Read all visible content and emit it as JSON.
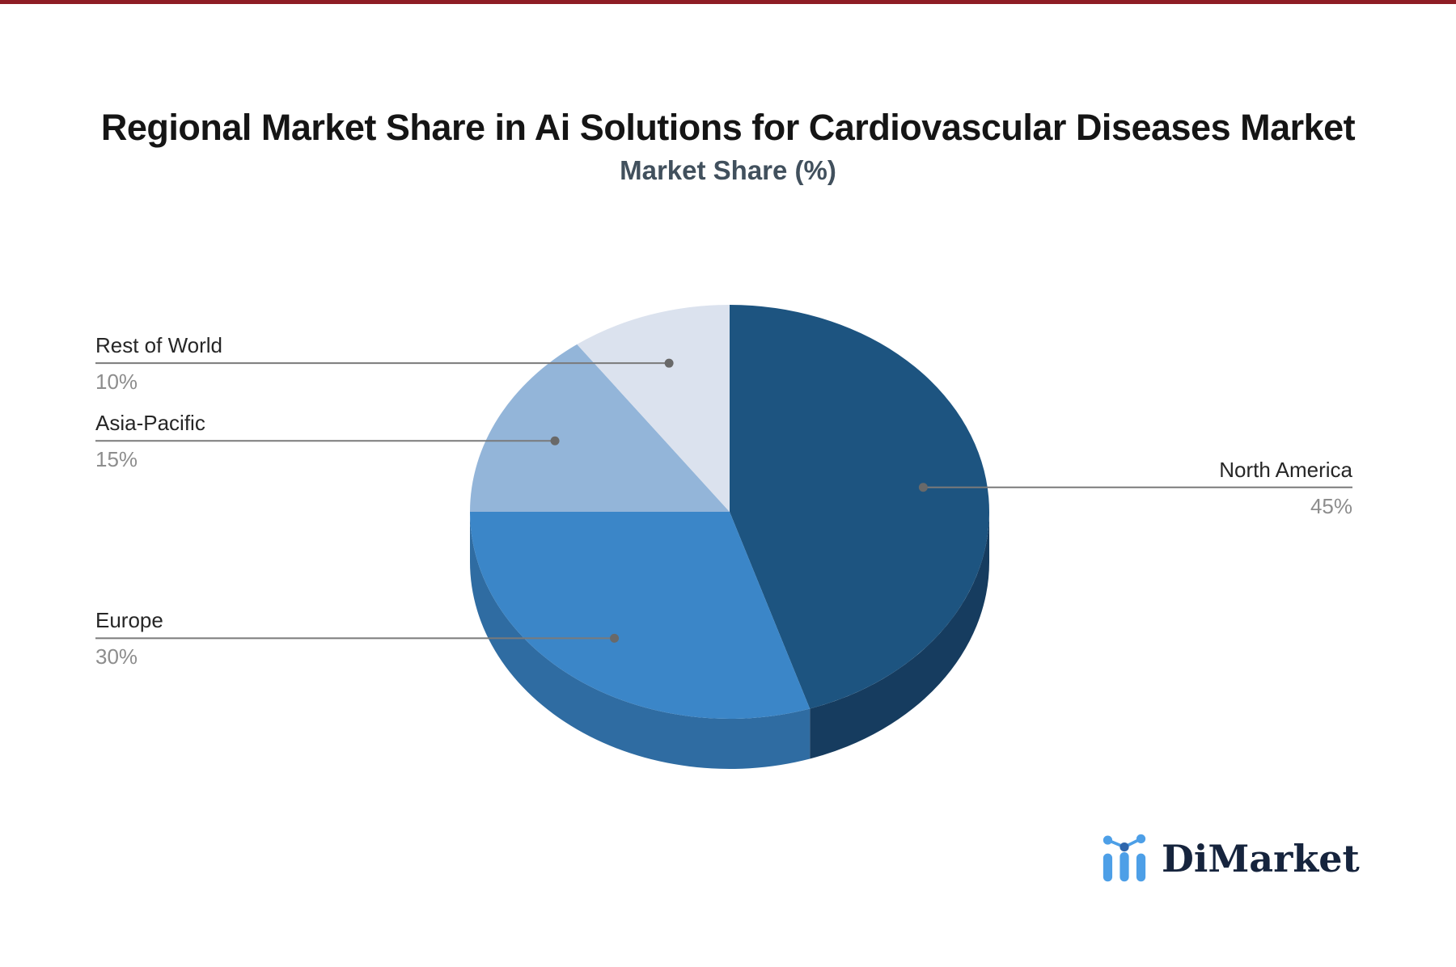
{
  "title": "Regional Market Share in Ai Solutions for Cardiovascular Diseases Market",
  "subtitle": "Market Share (%)",
  "chart_data": {
    "type": "pie",
    "style": "3d",
    "unit": "%",
    "start_angle_deg": 90,
    "direction": "clockwise",
    "legend_position": "leader-labels",
    "slices": [
      {
        "label": "North America",
        "value": 45,
        "pct_label": "45%",
        "color": "#1D5480",
        "rim_color": "#163C5F",
        "label_side": "right"
      },
      {
        "label": "Europe",
        "value": 30,
        "pct_label": "30%",
        "color": "#3B86C8",
        "rim_color": "#2F6CA2",
        "label_side": "left"
      },
      {
        "label": "Asia-Pacific",
        "value": 15,
        "pct_label": "15%",
        "color": "#93B5D9",
        "rim_color": "#7296BE",
        "label_side": "left"
      },
      {
        "label": "Rest of World",
        "value": 10,
        "pct_label": "10%",
        "color": "#DBE2EE",
        "rim_color": "#B8C4D8",
        "label_side": "left"
      }
    ],
    "leader_line_color": "#7A7A7A",
    "leader_dot_color": "#696969",
    "label_color": "#262626",
    "value_color": "#8D8D8D"
  },
  "brand": {
    "name": "DiMarket",
    "icon": "bar-line-chart-icon",
    "text_color": "#16243D",
    "icon_color": "#4D9FE7",
    "icon_accent_color": "#2F66AC"
  }
}
